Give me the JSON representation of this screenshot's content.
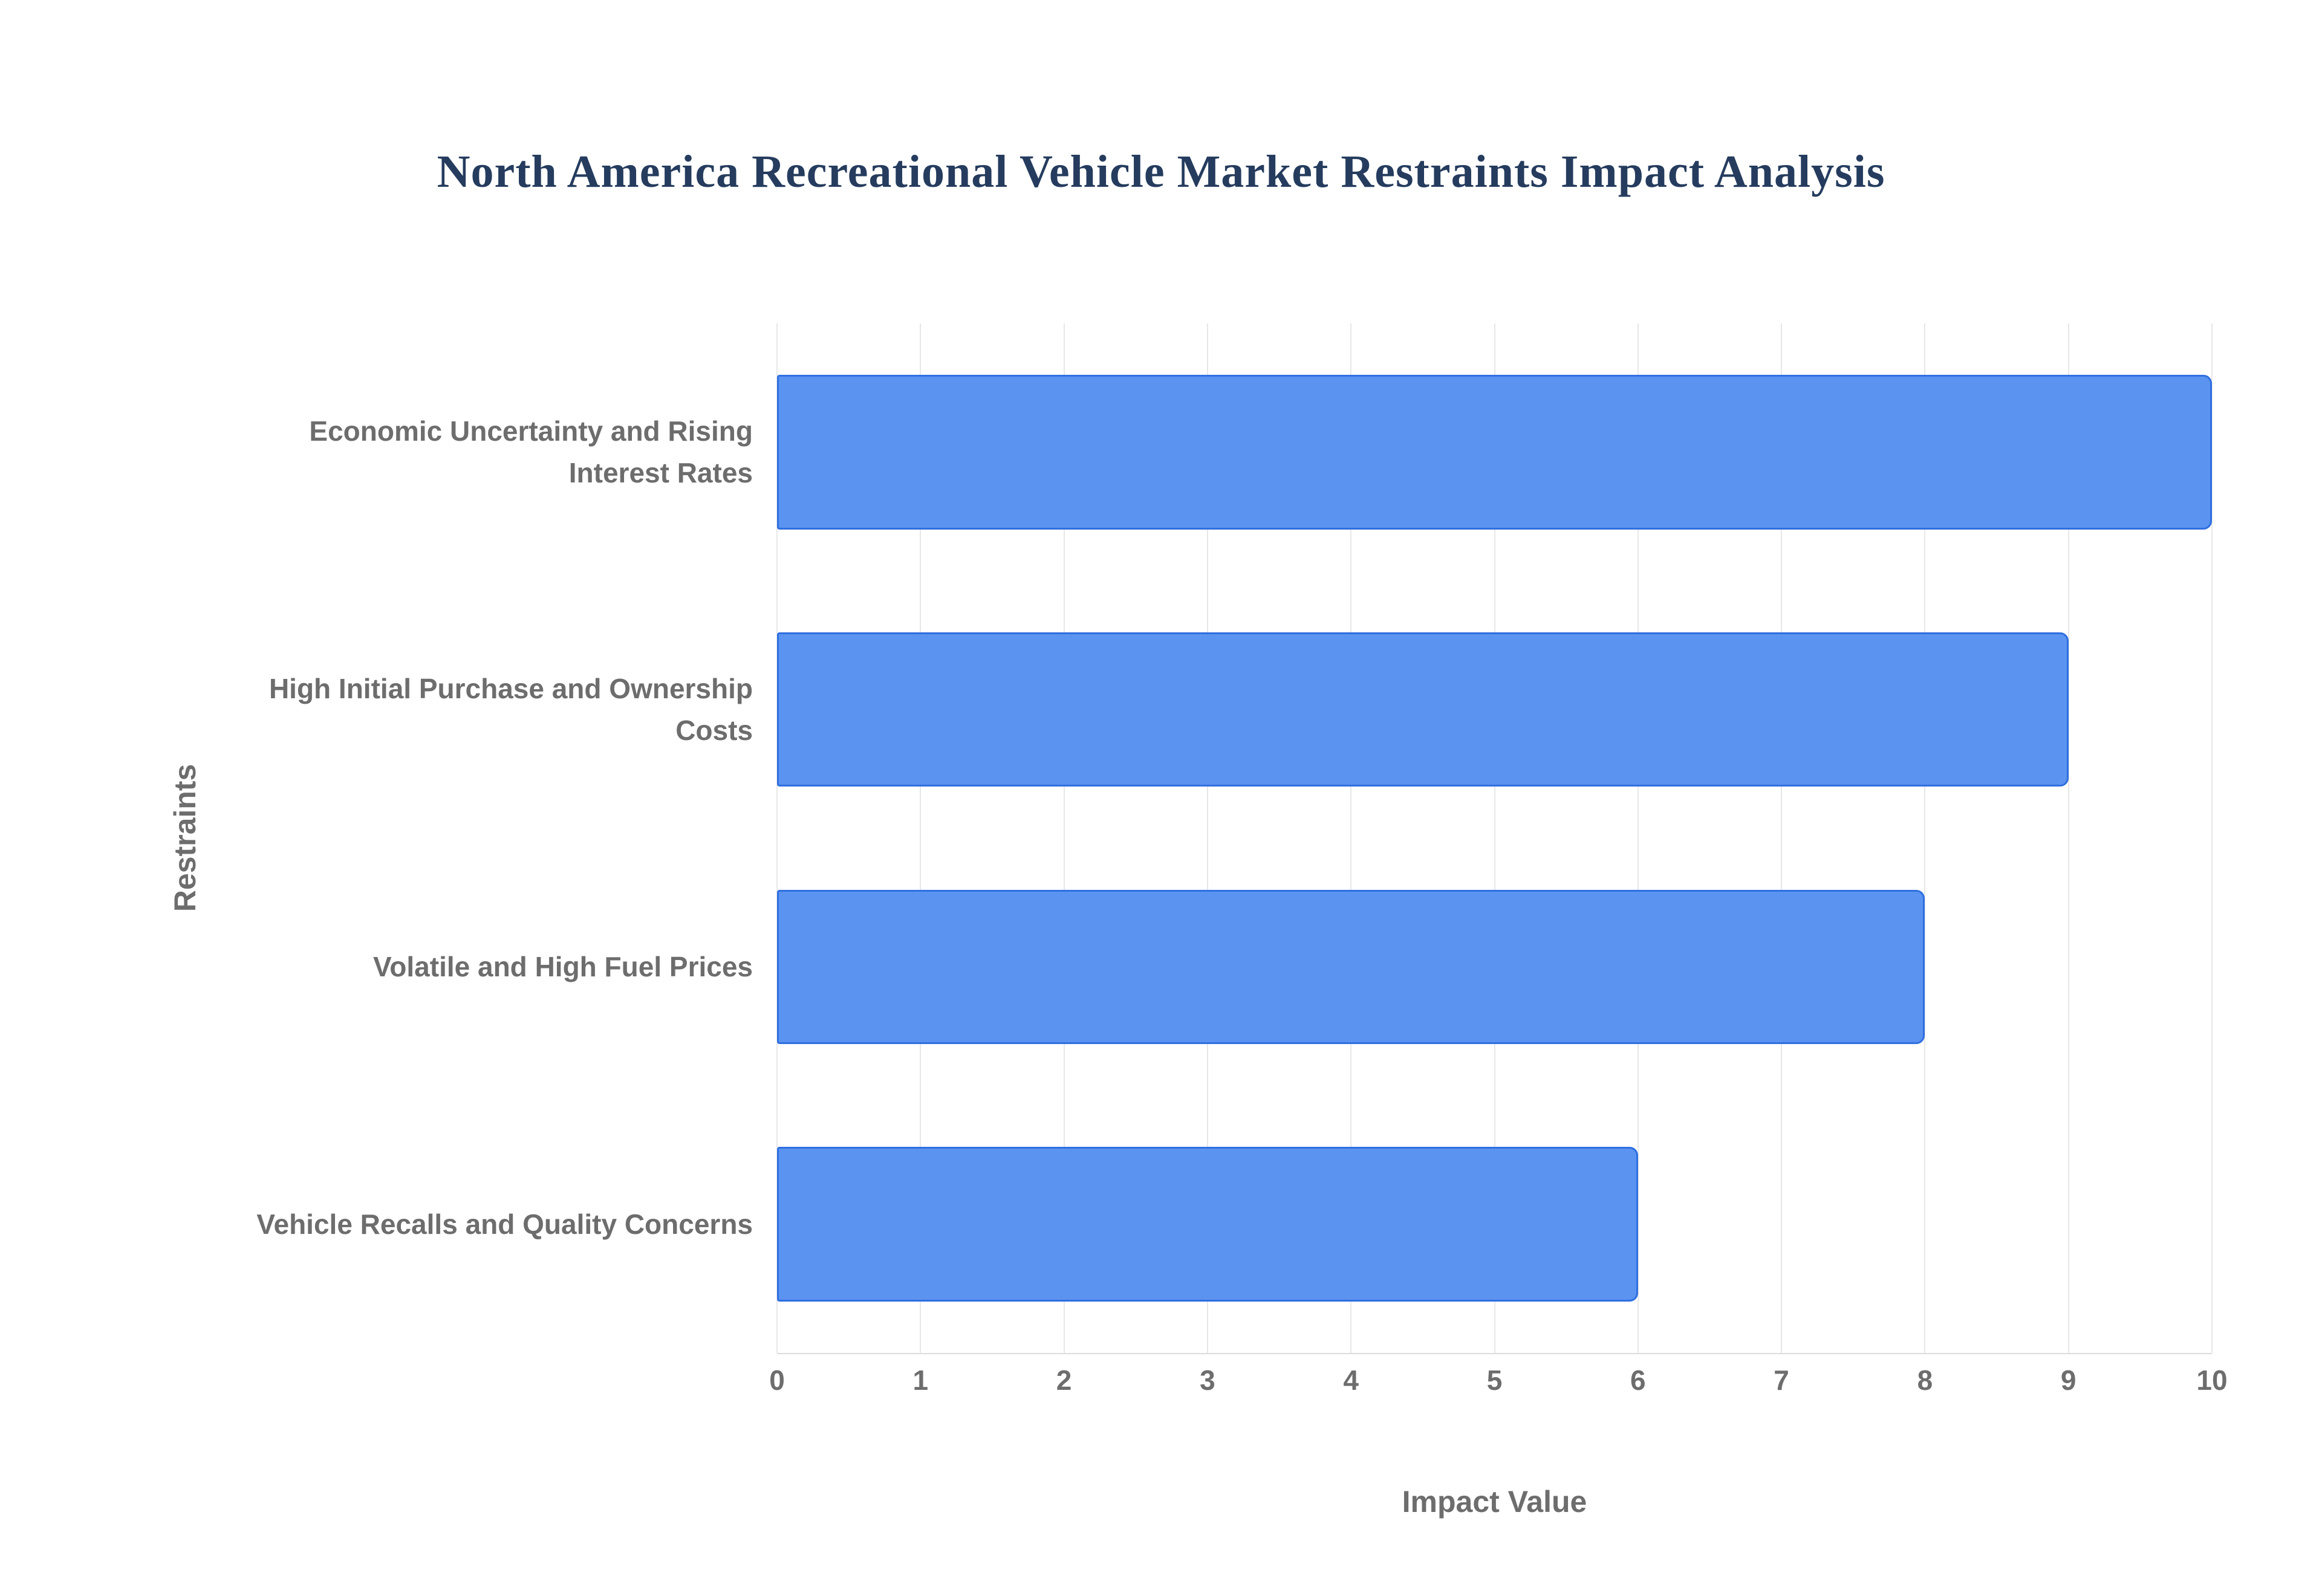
{
  "title": {
    "text": "North America Recreational Vehicle Market Restraints Impact Analysis",
    "color": "#253c5e"
  },
  "chart_data": {
    "type": "bar",
    "orientation": "horizontal",
    "title": "North America Recreational Vehicle Market Restraints Impact Analysis",
    "categories": [
      "Economic Uncertainty and Rising Interest Rates",
      "High Initial Purchase and Ownership Costs",
      "Volatile and High Fuel Prices",
      "Vehicle Recalls and Quality Concerns"
    ],
    "values": [
      10,
      9,
      8,
      6
    ],
    "xlabel": "Impact Value",
    "ylabel": "Restraints",
    "xlim": [
      0,
      10
    ],
    "xticks": [
      0,
      1,
      2,
      3,
      4,
      5,
      6,
      7,
      8,
      9,
      10
    ],
    "grid": true,
    "legend": false,
    "colors": {
      "bar_fill": "#5b93f0",
      "bar_border": "#2f6fe0",
      "grid_line": "#e7e7e7",
      "axis_text": "#6d6d6d"
    }
  }
}
